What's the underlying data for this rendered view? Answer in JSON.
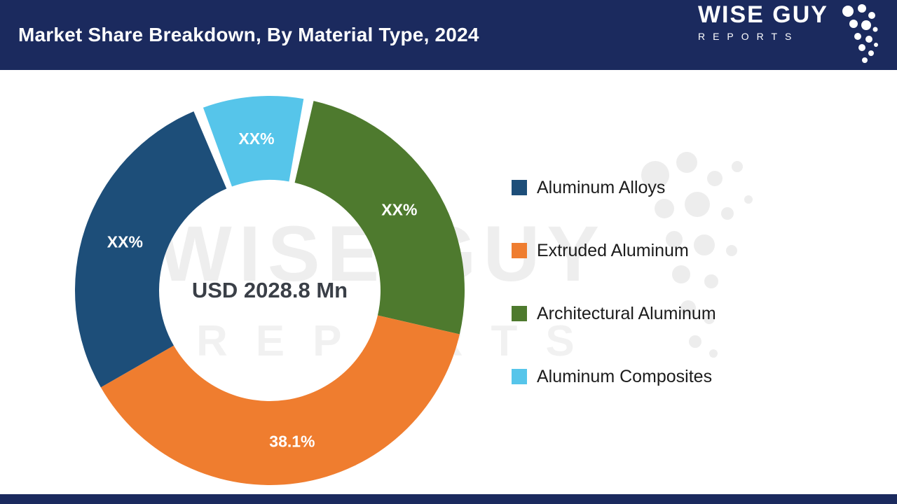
{
  "header": {
    "title": "Market Share Breakdown, By Material Type, 2024",
    "logo_line1": "WISE GUY",
    "logo_line2": "REPORTS"
  },
  "watermark": {
    "line1": "WISE GUY",
    "line2": "REPORTS"
  },
  "colors": {
    "navy_bar": "#1b2a5e",
    "aluminum_alloys": "#1d4e79",
    "extruded_aluminum": "#ef7d2f",
    "architectural_aluminum": "#4e7a2e",
    "aluminum_composites": "#56c5ea"
  },
  "chart_data": {
    "type": "pie",
    "subtype": "donut",
    "center_label": "USD 2028.8 Mn",
    "start_angle_deg": 13,
    "segments": [
      {
        "name": "Architectural Aluminum",
        "value": 25.0,
        "label": "XX%",
        "color": "#4e7a2e",
        "pad_deg": 0
      },
      {
        "name": "Extruded Aluminum",
        "value": 38.1,
        "label": "38.1%",
        "color": "#ef7d2f",
        "pad_deg": 0
      },
      {
        "name": "Aluminum Alloys",
        "value": 26.9,
        "label": "XX%",
        "color": "#1d4e79",
        "pad_deg": 0
      },
      {
        "name": "Aluminum Composites",
        "value": 10.0,
        "label": "XX%",
        "color": "#56c5ea",
        "pad_deg": 3
      }
    ],
    "legend": [
      {
        "label": "Aluminum Alloys",
        "color": "#1d4e79"
      },
      {
        "label": "Extruded Aluminum",
        "color": "#ef7d2f"
      },
      {
        "label": "Architectural Aluminum",
        "color": "#4e7a2e"
      },
      {
        "label": "Aluminum Composites",
        "color": "#56c5ea"
      }
    ],
    "legend_position": "right",
    "note": "Donut chart; labels XX% are placeholders shown in image; only Extruded Aluminum shows numeric share 38.1%"
  }
}
